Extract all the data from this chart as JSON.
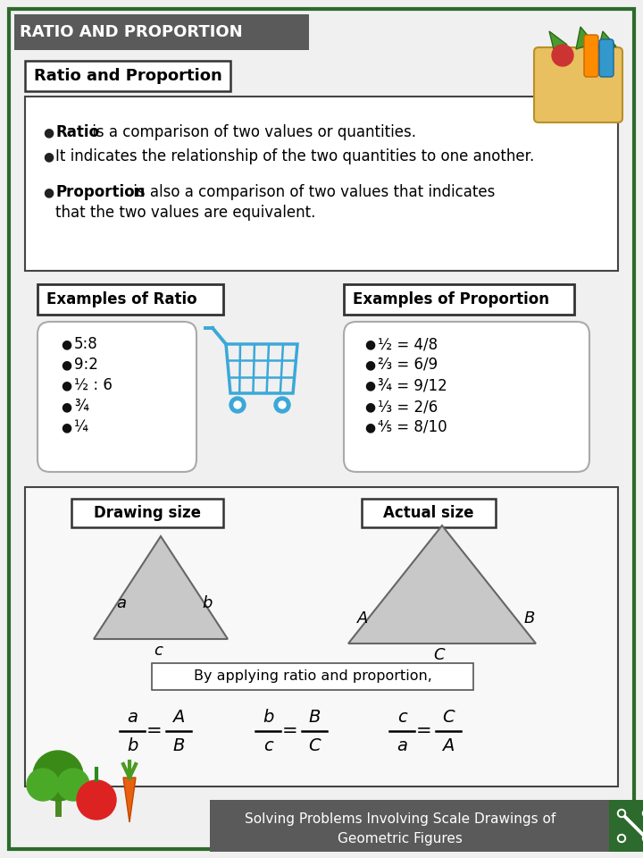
{
  "bg_color": "#f0f0f0",
  "border_color": "#2d6a2d",
  "header_bg": "#5a5a5a",
  "header_text": "RATIO AND PROPORTION",
  "header_text_color": "#ffffff",
  "subtitle_text": "Ratio and Proportion",
  "ratio_title": "Examples of Ratio",
  "ratio_items": [
    "5:8",
    "9:2",
    "½ : 6",
    "¾",
    "¼"
  ],
  "prop_title": "Examples of Proportion",
  "prop_items": [
    "½ = 4/8",
    "⅔ = 6/9",
    "¾ = 9/12",
    "⅓ = 2/6",
    "⅘ = 8/10"
  ],
  "drawing_title": "Drawing size",
  "actual_title": "Actual size",
  "apply_text": "By applying ratio and proportion,",
  "footer_bg": "#5a5a5a",
  "footer_text1": "Solving Problems Involving Scale Drawings of",
  "footer_text2": "Geometric Figures",
  "footer_text_color": "#ffffff",
  "footer_icon_bg": "#2d6a2d"
}
